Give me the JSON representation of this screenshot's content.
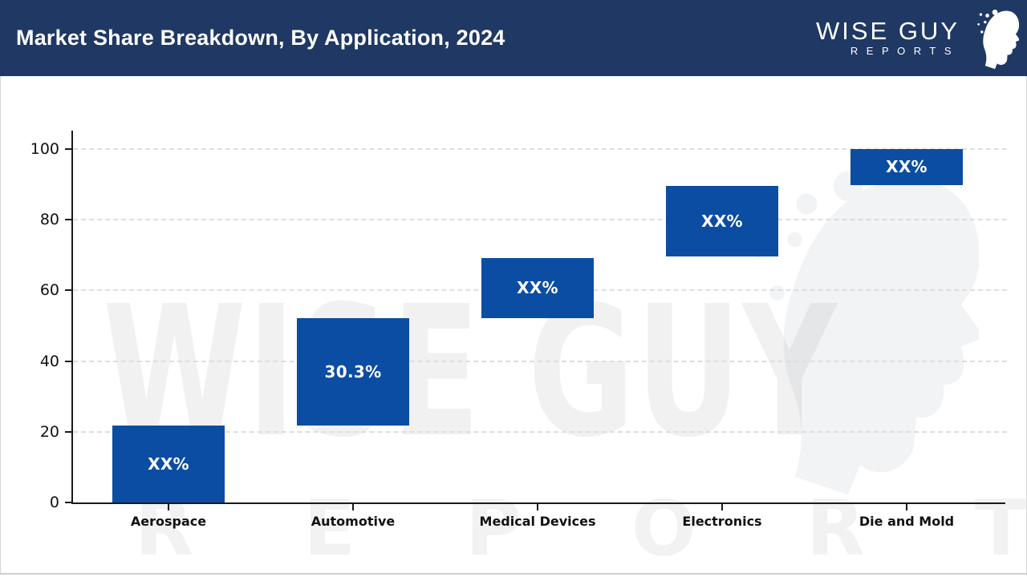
{
  "header": {
    "title": "Market Share Breakdown, By Application, 2024",
    "brand": {
      "wordmark": "WISE GUY",
      "tagline": "REPORTS"
    },
    "bg_color": "#1f3864"
  },
  "watermark": {
    "line1": "WISE GUY",
    "line2": "R E P O R T S"
  },
  "chart_data": {
    "type": "bar",
    "subtype": "waterfall",
    "title": "Market Share Breakdown, By Application, 2024",
    "categories": [
      "Aerospace",
      "Automotive",
      "Medical Devices",
      "Electronics",
      "Die and Mold"
    ],
    "series": [
      {
        "name": "Market Share",
        "segments": [
          {
            "category": "Aerospace",
            "start": 0,
            "end": 21.8,
            "label": "XX%"
          },
          {
            "category": "Automotive",
            "start": 21.8,
            "end": 52.1,
            "label": "30.3%"
          },
          {
            "category": "Medical Devices",
            "start": 52.2,
            "end": 69.2,
            "label": "XX%"
          },
          {
            "category": "Electronics",
            "start": 69.6,
            "end": 89.6,
            "label": "XX%"
          },
          {
            "category": "Die and Mold",
            "start": 89.8,
            "end": 100,
            "label": "XX%"
          }
        ]
      }
    ],
    "xlabel": "",
    "ylabel": "",
    "ylim": [
      0,
      100
    ],
    "yticks": [
      0,
      20,
      40,
      60,
      80,
      100
    ],
    "grid": "horizontal-dashed",
    "legend": "none",
    "bar_color": "#0b4da2",
    "bar_label_color": "#ffffff"
  }
}
